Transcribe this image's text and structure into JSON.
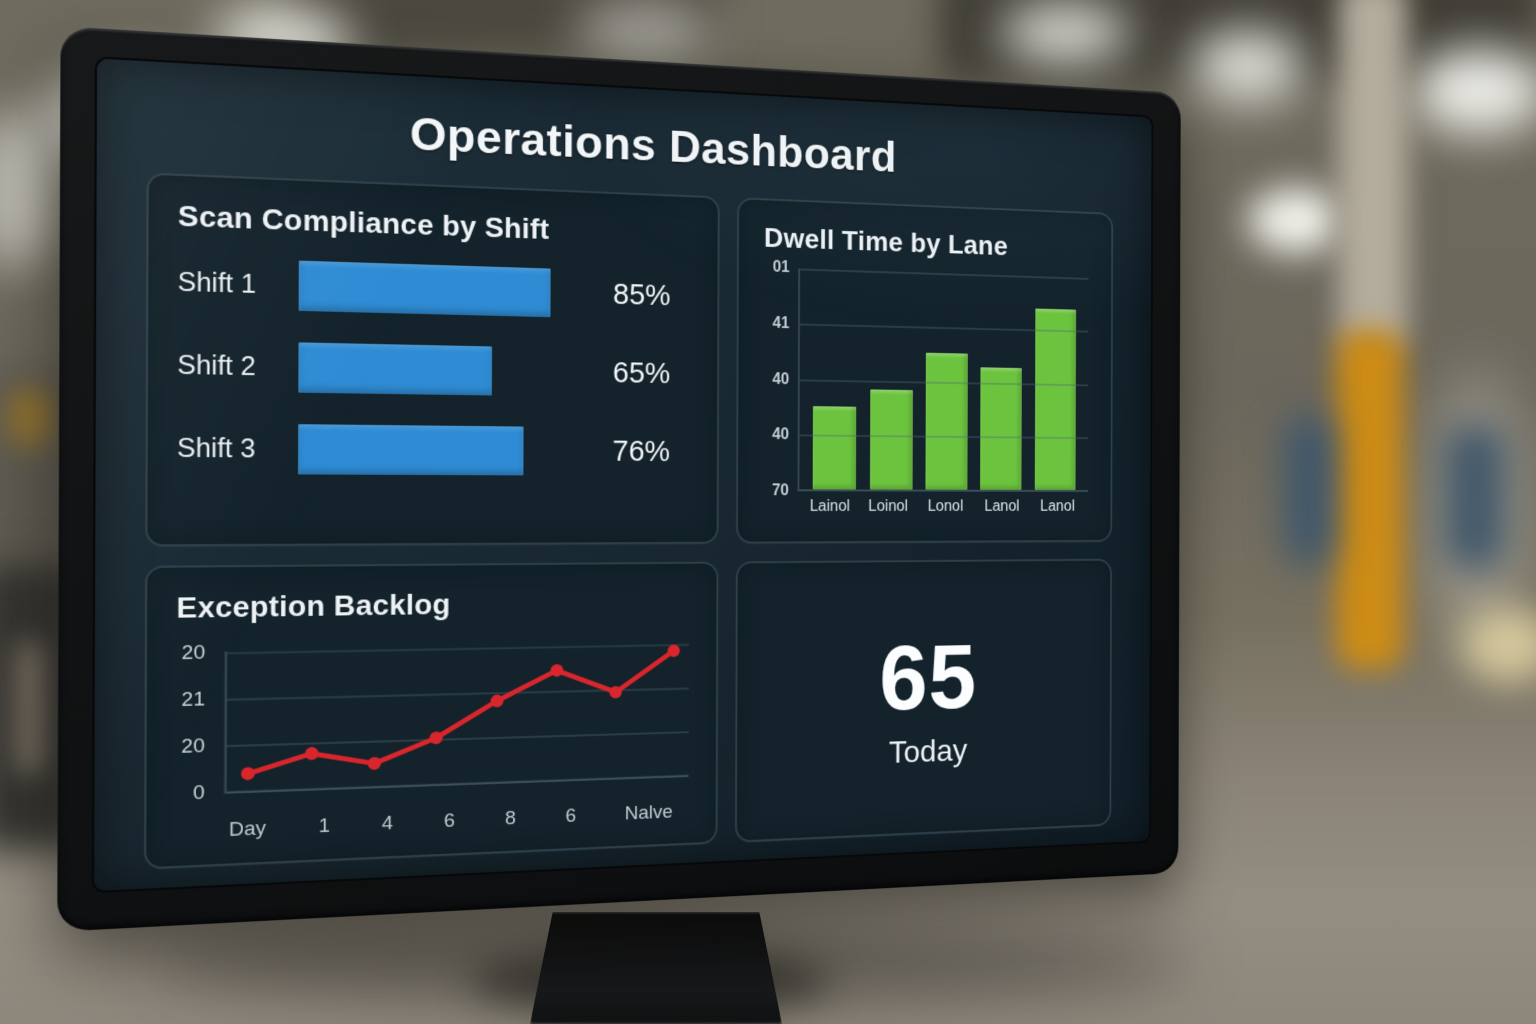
{
  "title": "Operations Dashboard",
  "theme": {
    "screen_bg": "#16242d",
    "panel_bg": "#13222b",
    "panel_border": "#2d3f4a",
    "text_primary": "#f2f5f7",
    "text_secondary": "#c4ced5",
    "bar_blue": "#2f8cd4",
    "bar_green": "#6cc43e",
    "line_red": "#d8262c"
  },
  "chart_data": [
    {
      "id": "scan_compliance",
      "type": "bar",
      "orientation": "horizontal",
      "title": "Scan Compliance by Shift",
      "categories": [
        "Shift 1",
        "Shift 2",
        "Shift 3"
      ],
      "values": [
        85,
        65,
        76
      ],
      "value_labels": [
        "85%",
        "65%",
        "76%"
      ],
      "xlim": [
        0,
        100
      ],
      "grid": false,
      "legend": "none",
      "bar_color": "#2f8cd4"
    },
    {
      "id": "dwell_time",
      "type": "bar",
      "orientation": "vertical",
      "title": "Dwell Time by Lane",
      "categories": [
        "Lainol",
        "Loinol",
        "Lonol",
        "Lanol",
        "Lanol"
      ],
      "values": [
        38,
        46,
        63,
        57,
        85
      ],
      "ylim": [
        0,
        100
      ],
      "y_tick_labels": [
        "01",
        "41",
        "40",
        "40",
        "70"
      ],
      "grid": true,
      "legend": "none",
      "bar_color": "#6cc43e"
    },
    {
      "id": "exception_backlog",
      "type": "line",
      "title": "Exception Backlog",
      "values": [
        3,
        6,
        4,
        8,
        14,
        19,
        15,
        22
      ],
      "ylim": [
        0,
        23
      ],
      "x_tick_labels": [
        "Day",
        "1",
        "4",
        "6",
        "8",
        "6",
        "Nalve"
      ],
      "y_tick_labels": [
        "20",
        "21",
        "20",
        "0"
      ],
      "grid": true,
      "legend": "none",
      "line_color": "#d8262c"
    },
    {
      "id": "today_count",
      "type": "kpi",
      "value": "65",
      "label": "Today"
    }
  ]
}
